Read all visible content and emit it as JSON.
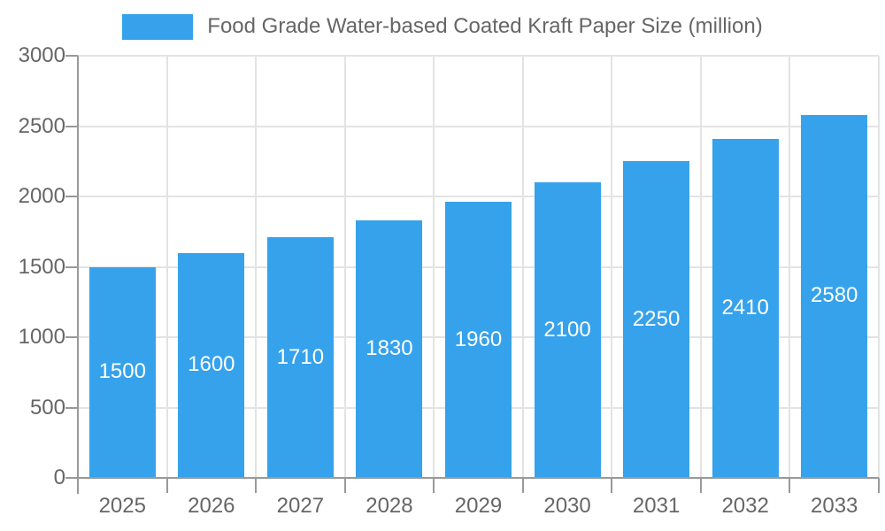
{
  "legend": {
    "label": "Food Grade Water-based Coated Kraft Paper Size (million)",
    "swatch_color": "#36a2eb"
  },
  "chart_data": {
    "type": "bar",
    "title": "Food Grade Water-based Coated Kraft Paper Size (million)",
    "series_name": "Food Grade Water-based Coated Kraft Paper Size (million)",
    "categories": [
      "2025",
      "2026",
      "2027",
      "2028",
      "2029",
      "2030",
      "2031",
      "2032",
      "2033"
    ],
    "values": [
      1500,
      1600,
      1710,
      1830,
      1960,
      2100,
      2250,
      2410,
      2580
    ],
    "xlabel": "",
    "ylabel": "",
    "ylim": [
      0,
      3000
    ],
    "y_ticks": [
      0,
      500,
      1000,
      1500,
      2000,
      2500,
      3000
    ],
    "grid": true,
    "legend_position": "top",
    "bar_color": "#36a2eb",
    "value_label_color": "#ffffff",
    "axis_text_color": "#666666",
    "gridline_color": "#e3e3e3",
    "axis_line_color": "#999999"
  }
}
